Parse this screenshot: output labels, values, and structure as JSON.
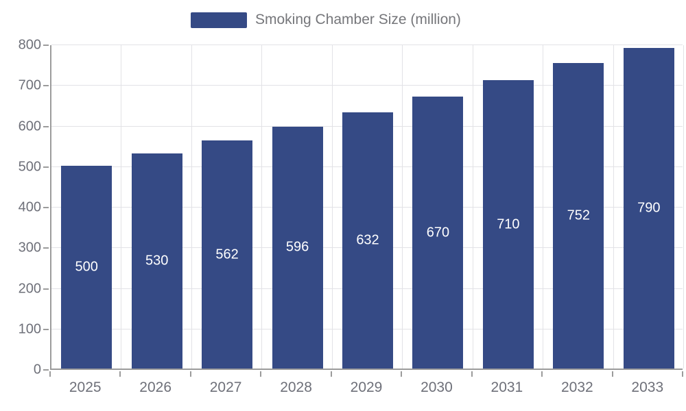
{
  "chart_data": {
    "type": "bar",
    "title": "",
    "legend": "Smoking Chamber Size (million)",
    "categories": [
      "2025",
      "2026",
      "2027",
      "2028",
      "2029",
      "2030",
      "2031",
      "2032",
      "2033"
    ],
    "values": [
      500,
      530,
      562,
      596,
      632,
      670,
      710,
      752,
      790
    ],
    "xlabel": "",
    "ylabel": "",
    "ylim": [
      0,
      800
    ],
    "ytick_step": 100,
    "grid": true,
    "legend_position": "top-center",
    "colors": {
      "bar": "#354a85",
      "bar_label": "#ffffff",
      "axis_text": "#6e7079",
      "legend_text": "#75767a",
      "gridline": "#e2e2e6",
      "axis_line": "#9b9b9b"
    }
  }
}
